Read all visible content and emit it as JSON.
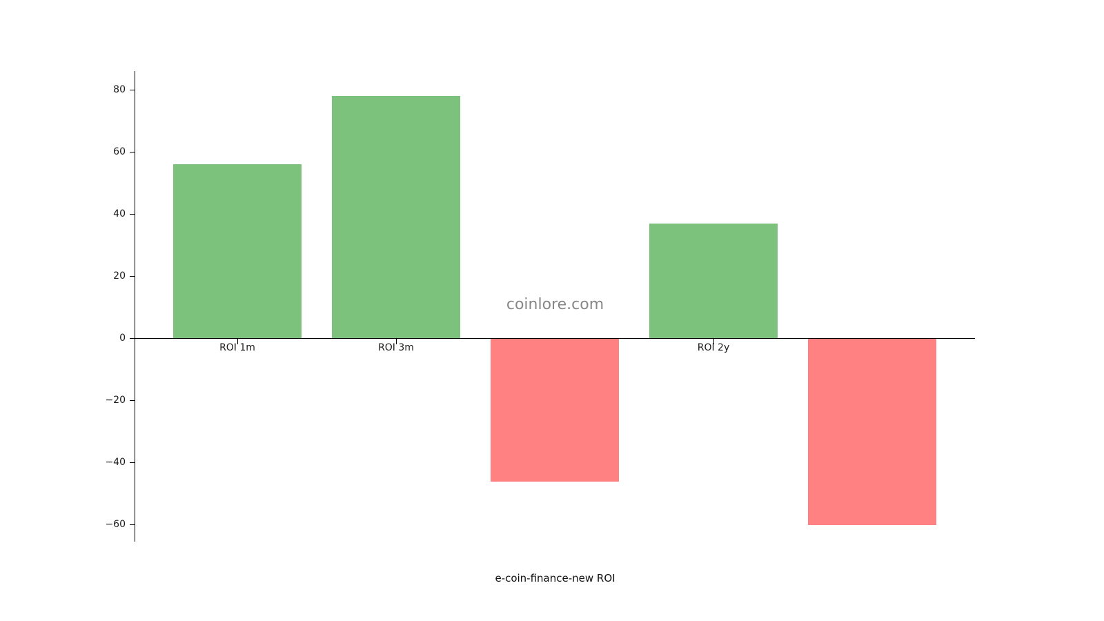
{
  "watermark": "coinlore.com",
  "chart_data": {
    "type": "bar",
    "title": "e-coin-finance-new ROI",
    "categories": [
      "ROI 1m",
      "ROI 3m",
      "",
      "ROI 2y",
      ""
    ],
    "values": [
      56,
      78,
      -46,
      37,
      -60
    ],
    "yticks": [
      80,
      60,
      40,
      20,
      0,
      -20,
      -40,
      -60
    ],
    "ytick_labels": [
      "80",
      "60",
      "40",
      "20",
      "0",
      "−20",
      "−40",
      "−60"
    ],
    "ylim": [
      -65.5,
      86
    ],
    "grid": false,
    "legend_position": "none",
    "colors": {
      "positive": "#7cc27c",
      "negative": "#ff8181",
      "axis": "#000000",
      "watermark": "#878787"
    }
  }
}
